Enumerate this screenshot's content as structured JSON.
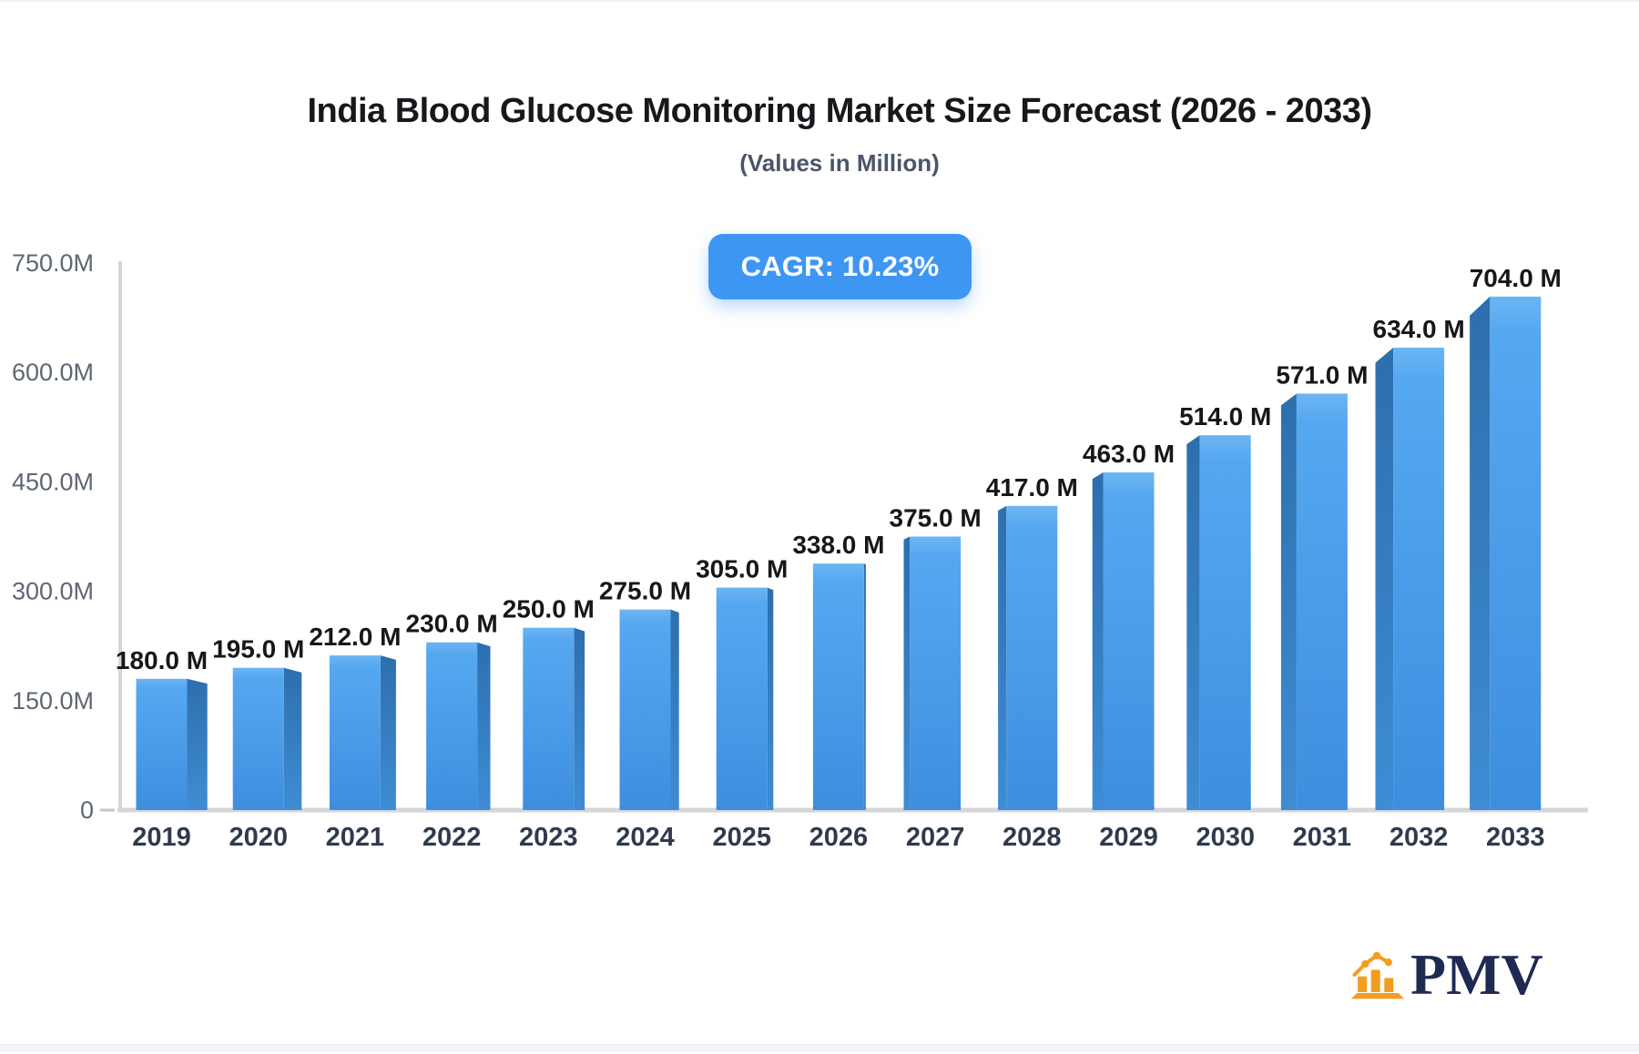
{
  "header": {
    "title": "India Blood Glucose Monitoring Market Size Forecast (2026 - 2033)",
    "subtitle": "(Values in Million)",
    "cagr_label": "CAGR: 10.23%"
  },
  "logo": {
    "text": "PMV",
    "icon": "bar-chart-with-trend-line-icon"
  },
  "chart_data": {
    "type": "bar",
    "title": "India Blood Glucose Monitoring Market Size Forecast (2026 - 2033)",
    "subtitle": "(Values in Million)",
    "categories": [
      "2019",
      "2020",
      "2021",
      "2022",
      "2023",
      "2024",
      "2025",
      "2026",
      "2027",
      "2028",
      "2029",
      "2030",
      "2031",
      "2032",
      "2033"
    ],
    "values": [
      180,
      195,
      212,
      230,
      250,
      275,
      305,
      338,
      375,
      417,
      463,
      514,
      571,
      634,
      704
    ],
    "value_labels": [
      "180.0 M",
      "195.0 M",
      "212.0 M",
      "230.0 M",
      "250.0 M",
      "275.0 M",
      "305.0 M",
      "338.0 M",
      "375.0 M",
      "417.0 M",
      "463.0 M",
      "514.0 M",
      "571.0 M",
      "634.0 M",
      "704.0 M"
    ],
    "y_axis": {
      "ticks": [
        {
          "label": "750.0M",
          "value": 750
        },
        {
          "label": "600.0M",
          "value": 600
        },
        {
          "label": "450.0M",
          "value": 450
        },
        {
          "label": "300.0M",
          "value": 300
        },
        {
          "label": "150.0M",
          "value": 150
        },
        {
          "label": "0",
          "value": 0
        }
      ],
      "ylim": [
        0,
        750
      ]
    },
    "legend": "none",
    "grid": "off",
    "style": "3d-perspective-columns",
    "colors": {
      "bar_front_top": "#6cb5f4",
      "bar_front_mid": "#55a8f0",
      "bar_front_bottom": "#3e8edf",
      "bar_side_top": "#2d6fad",
      "bar_side_bottom": "#3f8cd4",
      "axis_line": "#d4d6da",
      "tick_dash": "#c3c7cd",
      "y_tick_text": "#5f6774",
      "x_tick_text": "#2f3a4e",
      "value_text": "#15171a",
      "badge_blue": "#3e96f3",
      "logo_orange": "#f39c1f",
      "logo_navy": "#1e2a52"
    }
  }
}
